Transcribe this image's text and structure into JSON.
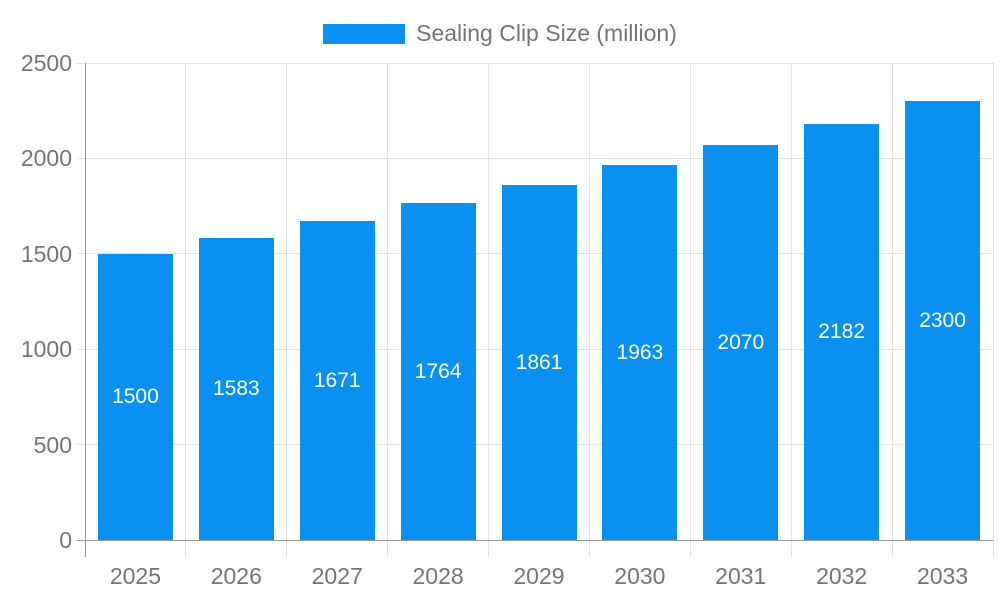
{
  "legend": {
    "label": "Sealing Clip Size (million)"
  },
  "chart_data": {
    "type": "bar",
    "title": "Sealing Clip Size (million)",
    "series_name": "Sealing Clip Size (million)",
    "categories": [
      "2025",
      "2026",
      "2027",
      "2028",
      "2029",
      "2030",
      "2031",
      "2032",
      "2033"
    ],
    "values": [
      1500,
      1583,
      1671,
      1764,
      1861,
      1963,
      2070,
      2182,
      2300
    ],
    "xlabel": "",
    "ylabel": "",
    "ylim": [
      0,
      2500
    ],
    "yticks": [
      0,
      500,
      1000,
      1500,
      2000,
      2500
    ],
    "grid": true,
    "legend_position": "top-center",
    "value_labels": "inside-center",
    "colors": {
      "bar": "#0a90f0",
      "value_label": "#ffffff",
      "axis": "#999999",
      "gridline": "#e3e3e3",
      "tick_label": "#757575",
      "background": "#ffffff"
    }
  }
}
